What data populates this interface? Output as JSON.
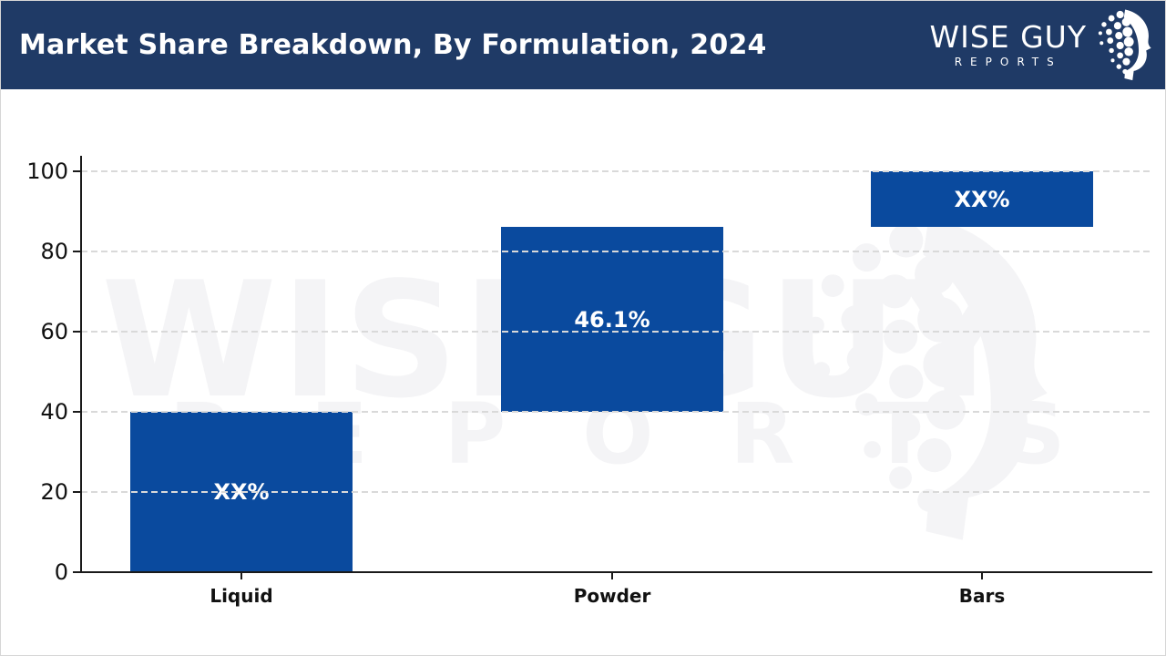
{
  "header": {
    "title": "Market Share Breakdown, By Formulation, 2024",
    "bg_color": "#1f3a66",
    "logo": {
      "line1": "WISE GUY",
      "line2": "REPORTS"
    }
  },
  "chart_data": {
    "type": "bar",
    "subtype": "waterfall",
    "title": "Market Share Breakdown, By Formulation, 2024",
    "categories": [
      "Liquid",
      "Powder",
      "Bars"
    ],
    "segments": [
      {
        "category": "Liquid",
        "start": 0,
        "end": 40,
        "label": "XX%"
      },
      {
        "category": "Powder",
        "start": 40,
        "end": 86.1,
        "label": "46.1%"
      },
      {
        "category": "Bars",
        "start": 86.1,
        "end": 100,
        "label": "XX%"
      }
    ],
    "values_shown": {
      "Liquid": "XX%",
      "Powder": "46.1%",
      "Bars": "XX%"
    },
    "xlabel": "",
    "ylabel": "",
    "ylim": [
      0,
      100
    ],
    "yticks": [
      0,
      20,
      40,
      60,
      80,
      100
    ],
    "grid": "horizontal dashed",
    "legend": "none",
    "bar_color": "#0a4a9e",
    "axis_color": "#1a1a1a",
    "grid_color": "#d9d9d9",
    "watermark": {
      "line1": "WISE GUY",
      "line2": "R E P O R T S",
      "color": "#f4f4f6"
    }
  }
}
